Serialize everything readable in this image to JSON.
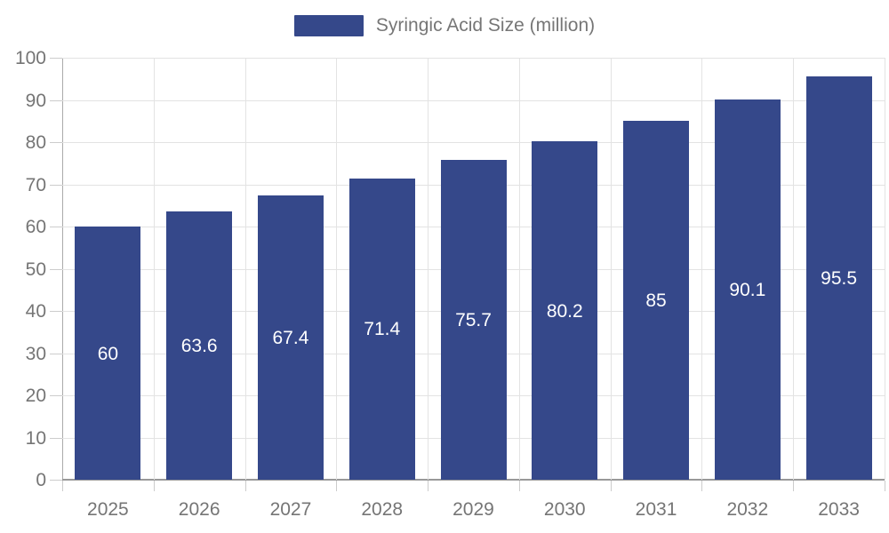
{
  "legend": {
    "label": "Syringic Acid Size (million)"
  },
  "chart_data": {
    "type": "bar",
    "title": "",
    "xlabel": "",
    "ylabel": "",
    "categories": [
      "2025",
      "2026",
      "2027",
      "2028",
      "2029",
      "2030",
      "2031",
      "2032",
      "2033"
    ],
    "series": [
      {
        "name": "Syringic Acid Size (million)",
        "values": [
          60,
          63.6,
          67.4,
          71.4,
          75.7,
          80.2,
          85,
          90.1,
          95.5
        ]
      }
    ],
    "data_labels": [
      "60",
      "63.6",
      "67.4",
      "71.4",
      "75.7",
      "80.2",
      "85",
      "90.1",
      "95.5"
    ],
    "ylim": [
      0,
      100
    ],
    "ytick_step": 10,
    "grid": true,
    "legend_position": "top-center",
    "colors": {
      "bar": "#35488a",
      "grid_line": "#e3e3e3",
      "x_axis_line": "#999999",
      "y_axis_line": "#aaaaaa",
      "tick": "#cccccc",
      "axis_text": "#757575",
      "legend_text": "#767676",
      "bar_value_text": "#ffffff"
    }
  }
}
